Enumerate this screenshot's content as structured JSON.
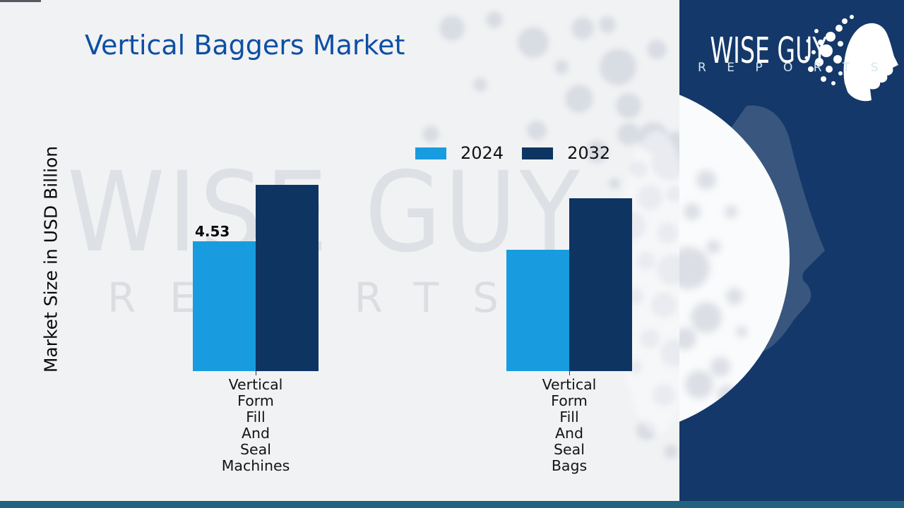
{
  "page": {
    "title": "Vertical Baggers Market",
    "y_axis_label": "Market Size in USD Billion"
  },
  "legend": [
    {
      "label": "2024",
      "color": "#189CDF"
    },
    {
      "label": "2032",
      "color": "#0E3462"
    }
  ],
  "chart_data": {
    "type": "bar",
    "title": "Vertical Baggers Market",
    "ylabel": "Market Size in USD Billion",
    "categories": [
      "Vertical Form Fill And Seal Machines",
      "Vertical Form Fill And Seal Bags"
    ],
    "series": [
      {
        "name": "2024",
        "color": "#189CDF",
        "values": [
          4.53,
          4.23
        ]
      },
      {
        "name": "2032",
        "color": "#0E3462",
        "values": [
          6.5,
          6.03
        ]
      }
    ],
    "value_labels": [
      {
        "series": "2024",
        "category_index": 0,
        "text": "4.53"
      }
    ],
    "legend_position": "top-center",
    "grid": false,
    "ylim": [
      0,
      7
    ]
  },
  "watermark": {
    "line1": "WISE GUY",
    "line2": "REPORTS"
  },
  "logo": {
    "line1": "WISE GUY",
    "line2": "R E P O R T S"
  },
  "colors": {
    "background": "#F1F2F3",
    "title": "#0D4FA4",
    "bar_2024": "#189CDF",
    "bar_2032": "#0E3462",
    "panel_navy": "#14386A",
    "face_silhouette": "#38567E",
    "bottom_bar": "#20627F",
    "watermark_gray": "#D9DCE2"
  }
}
